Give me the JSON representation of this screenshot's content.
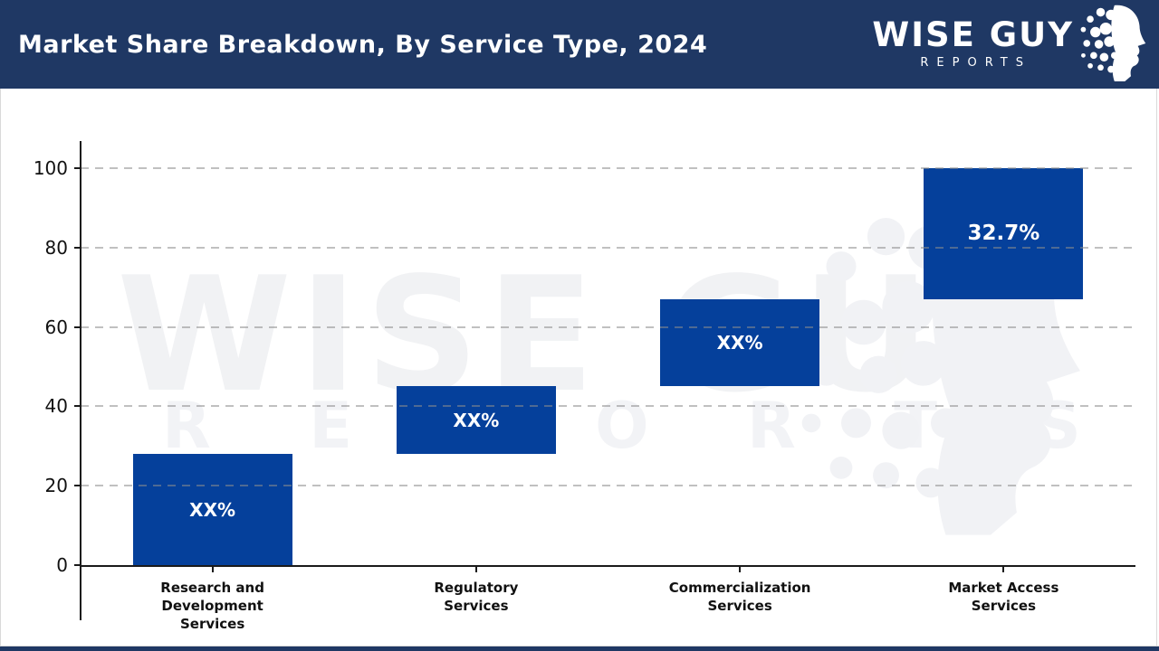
{
  "header": {
    "title": "Market Share Breakdown, By Service Type, 2024",
    "logo": {
      "line1": "WISE GUY",
      "line2": "REPORTS"
    }
  },
  "watermark": {
    "line1": "WISE GUY",
    "line2": "REPORTS"
  },
  "chart_data": {
    "type": "bar",
    "subtype": "waterfall-floating-bars",
    "title": "Market Share Breakdown, By Service Type, 2024",
    "categories": [
      [
        "Research and",
        "Development",
        "Services"
      ],
      [
        "Regulatory",
        "Services"
      ],
      [
        "Commercialization",
        "Services"
      ],
      [
        "Market Access",
        "Services"
      ]
    ],
    "series": [
      {
        "name": "Market share (%)",
        "segments": [
          {
            "start": 0,
            "end": 28,
            "label": "XX%"
          },
          {
            "start": 28,
            "end": 45,
            "label": "XX%"
          },
          {
            "start": 45,
            "end": 67,
            "label": "XX%"
          },
          {
            "start": 67,
            "end": 100,
            "label": "32.7%"
          }
        ]
      }
    ],
    "ylim": [
      0,
      100
    ],
    "yticks": [
      0,
      20,
      40,
      60,
      80,
      100
    ],
    "xlabel": "",
    "ylabel": "",
    "grid": "dashed-horizontal",
    "legend": "none",
    "bar_color": "#05409b",
    "bar_label_color": "#ffffff",
    "header_color": "#1f3864"
  }
}
